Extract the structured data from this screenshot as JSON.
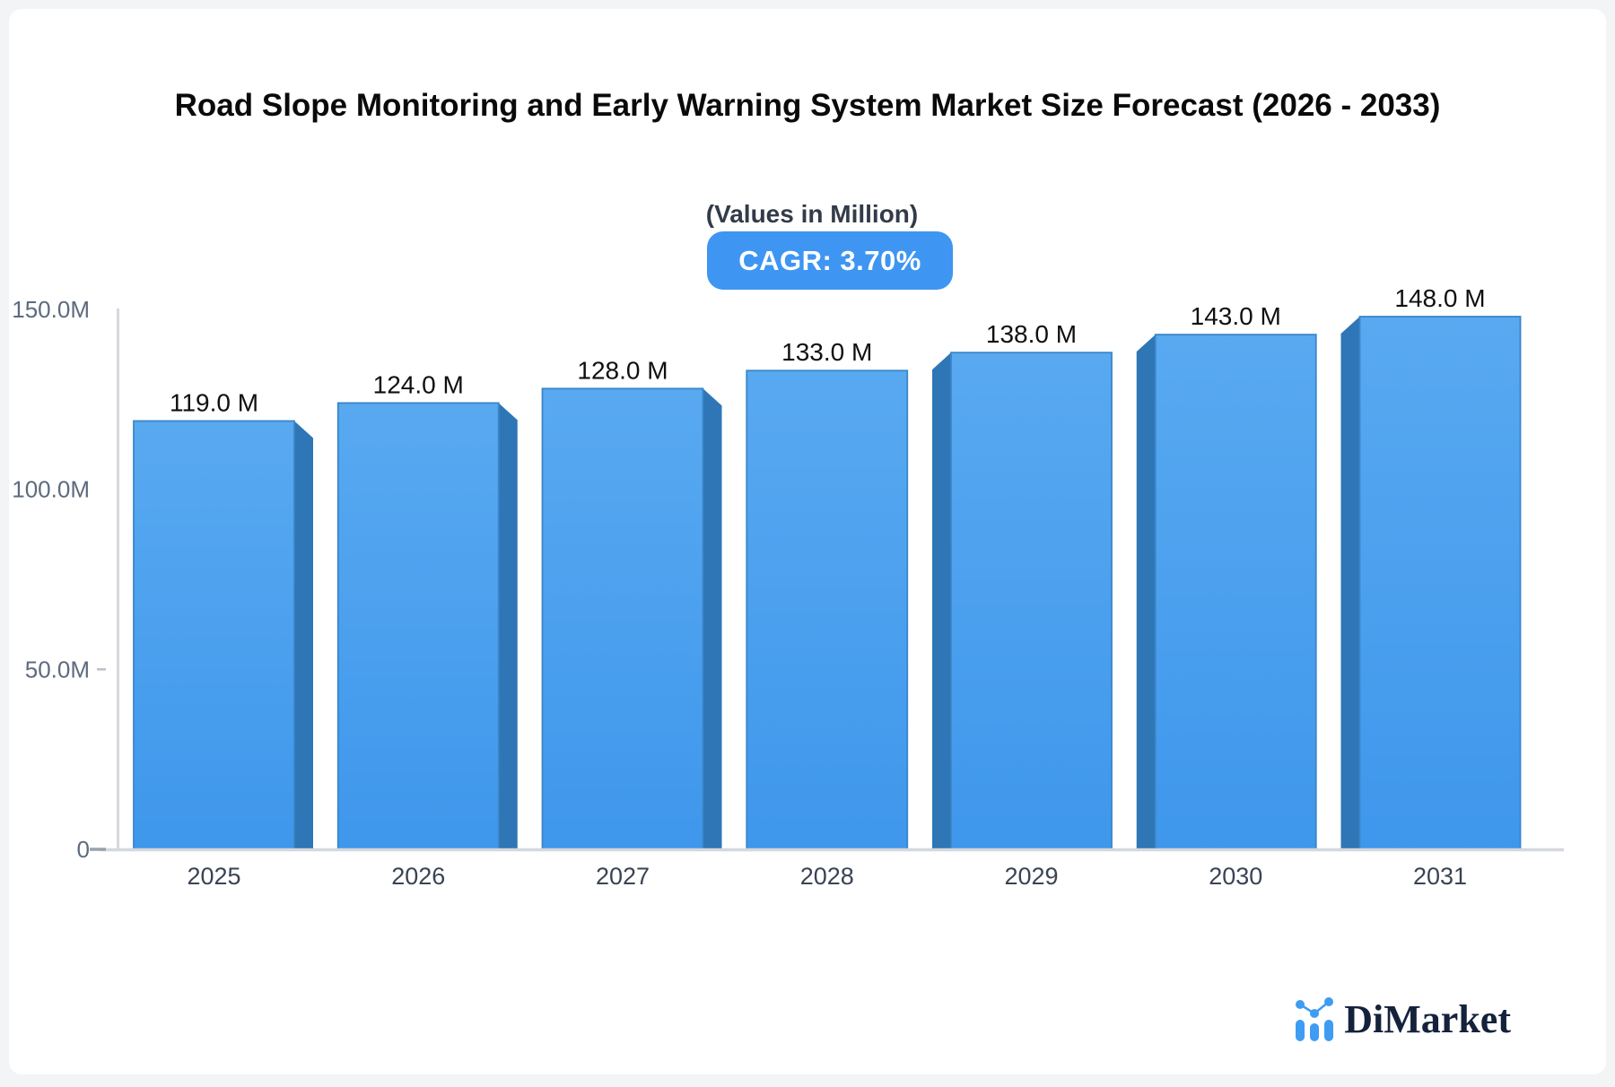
{
  "header": {
    "title": "Road Slope Monitoring and Early Warning System Market Size Forecast (2026 - 2033)",
    "subtitle": "(Values in Million)",
    "cagr_badge": "CAGR: 3.70%"
  },
  "chart_data": {
    "type": "bar",
    "title": "Road Slope Monitoring and Early Warning System Market Size Forecast (2026 - 2033)",
    "subtitle": "(Values in Million)",
    "cagr_percent": 3.7,
    "unit": "Million",
    "categories": [
      "2025",
      "2026",
      "2027",
      "2028",
      "2029",
      "2030",
      "2031"
    ],
    "values": [
      119,
      124,
      128,
      133,
      138,
      143,
      148
    ],
    "value_labels": [
      "119.0 M",
      "124.0 M",
      "128.0 M",
      "133.0 M",
      "138.0 M",
      "143.0 M",
      "148.0 M"
    ],
    "xlabel": "",
    "ylabel": "",
    "ylim": [
      0,
      150
    ],
    "yticks": [
      {
        "label": "0",
        "value": 0,
        "tick": "long"
      },
      {
        "label": "50.0M",
        "value": 50,
        "tick": "short"
      },
      {
        "label": "100.0M",
        "value": 100,
        "tick": "none"
      },
      {
        "label": "150.0M",
        "value": 150,
        "tick": "none"
      }
    ],
    "grid": false,
    "legend": false,
    "bar_style": "3d-perspective-center",
    "colors": {
      "bar_top": "#58a9f0",
      "bar_bottom": "#3f97ec",
      "bar_side": "#2e76b6",
      "bar_stroke": "#3a86c9",
      "axis_line": "#d5d8dd",
      "tick_long": "#99a2ac",
      "tick_short": "#b9c0c8",
      "ytick_label": "#5d6b7d",
      "xtick_label": "#3a4354",
      "value_label": "#101010"
    }
  },
  "badge_color": "#3e96f2",
  "logo": {
    "text": "DiMarket",
    "icon": "bar-line-chart-icon",
    "icon_color": "#3f9cf3",
    "text_color": "#15223c"
  }
}
